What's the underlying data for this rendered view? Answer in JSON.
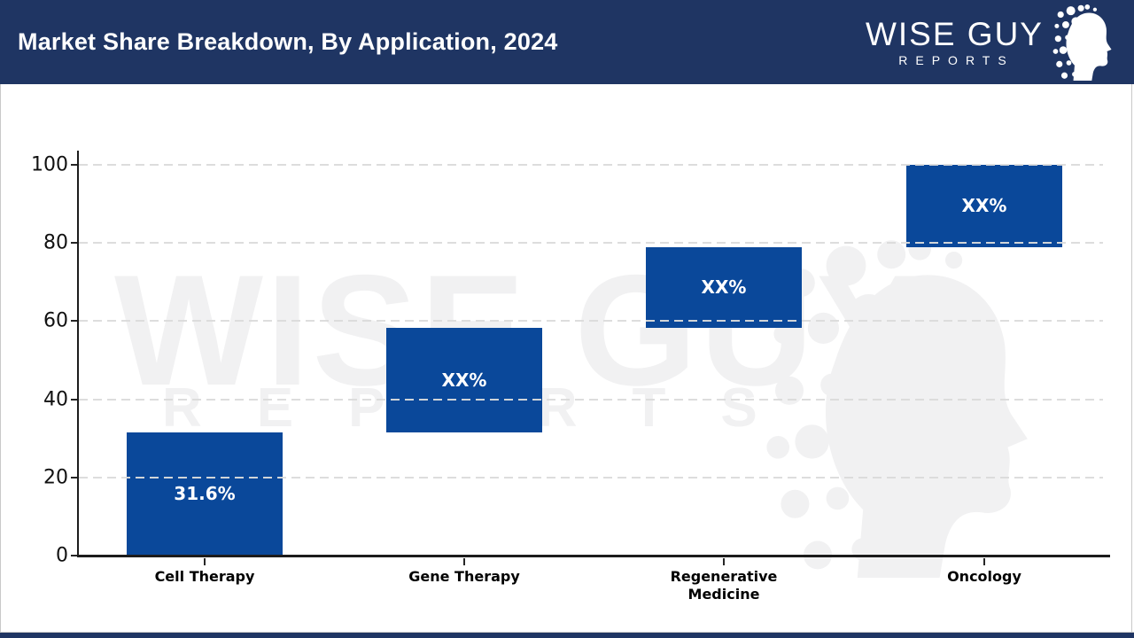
{
  "header": {
    "title": "Market Share Breakdown, By Application, 2024",
    "logo": {
      "line1": "WISE GUY",
      "line2": "REPORTS"
    }
  },
  "watermark": {
    "line1": "WISE GUY",
    "line2": "REPORTS"
  },
  "colors": {
    "header_bg": "#1f3563",
    "footer_bg": "#1f3563",
    "bar": "#0a489a",
    "bar_label": "#ffffff",
    "axis": "#1c1c1c",
    "grid": "#dbdbdb",
    "watermark": "#f1f1f2",
    "card_border": "#c9c9c9"
  },
  "chart_data": {
    "type": "bar",
    "subtype": "waterfall",
    "title": "Market Share Breakdown, By Application, 2024",
    "categories": [
      "Cell Therapy",
      "Gene Therapy",
      "Regenerative Medicine",
      "Oncology"
    ],
    "bars": [
      {
        "category": "Cell Therapy",
        "label": "31.6%",
        "start": 0,
        "end": 31.6
      },
      {
        "category": "Gene Therapy",
        "label": "XX%",
        "start": 31.6,
        "end": 58.3
      },
      {
        "category": "Regenerative Medicine",
        "label": "XX%",
        "start": 58.3,
        "end": 79.0
      },
      {
        "category": "Oncology",
        "label": "XX%",
        "start": 79.0,
        "end": 100.0
      }
    ],
    "yticks": [
      0,
      20,
      40,
      60,
      80,
      100
    ],
    "ylim": [
      0,
      103.5
    ],
    "xlabel": "",
    "ylabel": "",
    "grid": "dashed-horizontal",
    "legend": "none"
  }
}
